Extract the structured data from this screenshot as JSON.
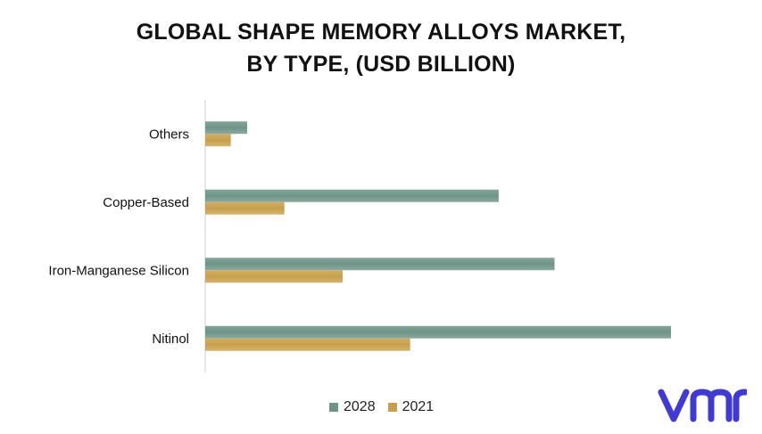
{
  "title_line1": "GLOBAL SHAPE MEMORY ALLOYS MARKET,",
  "title_line2": "BY TYPE, (USD BILLION)",
  "colors": {
    "series_2028": "#6e9488",
    "series_2021": "#c8a04c",
    "logo": "#3f3ad3"
  },
  "logo": {
    "icon": "vmr-logo",
    "text": "vmr"
  },
  "chart_data": {
    "type": "bar",
    "orientation": "horizontal",
    "categories": [
      "Others",
      "Copper-Based",
      "Iron-Manganese Silicon",
      "Nitinol"
    ],
    "series": [
      {
        "name": "2028",
        "values": [
          0.09,
          0.63,
          0.75,
          1.0
        ]
      },
      {
        "name": "2021",
        "values": [
          0.055,
          0.17,
          0.295,
          0.44
        ]
      }
    ],
    "xlim": [
      0,
      1.0
    ],
    "grid": false,
    "legend_position": "bottom"
  }
}
